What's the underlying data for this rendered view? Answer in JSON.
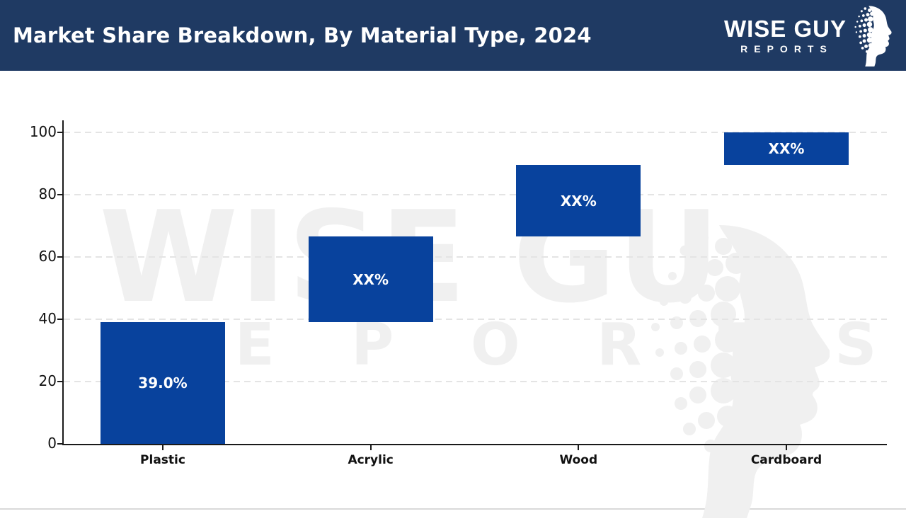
{
  "header": {
    "title": "Market Share Breakdown, By Material Type, 2024",
    "logo": {
      "line1": "WISE GUY",
      "line2": "REPORTS"
    }
  },
  "watermark": {
    "line1": "WISE GU",
    "line2": "R E P O R T S"
  },
  "colors": {
    "header_bg": "#1F3A63",
    "bar": "#08429D",
    "grid": "#E4E4E4",
    "axis": "#1A1A1A",
    "watermark": "#F0F0F0",
    "bar_label": "#FFFFFF",
    "title_text": "#FFFFFF"
  },
  "chart_data": {
    "type": "bar",
    "subtype": "waterfall",
    "title": "Market Share Breakdown, By Material Type, 2024",
    "xlabel": "",
    "ylabel": "",
    "categories": [
      "Plastic",
      "Acrylic",
      "Wood",
      "Cardboard"
    ],
    "bars": [
      {
        "category": "Plastic",
        "start": 0,
        "end": 39,
        "label": "39.0%"
      },
      {
        "category": "Acrylic",
        "start": 39,
        "end": 66.5,
        "label": "XX%"
      },
      {
        "category": "Wood",
        "start": 66.5,
        "end": 89.5,
        "label": "XX%"
      },
      {
        "category": "Cardboard",
        "start": 89.5,
        "end": 100,
        "label": "XX%"
      }
    ],
    "bar_labels": [
      "39.0%",
      "XX%",
      "XX%",
      "XX%"
    ],
    "yticks": [
      0,
      20,
      40,
      60,
      80,
      100
    ],
    "ylim": [
      0,
      104
    ],
    "grid": "horizontal-dashed",
    "legend": "none"
  }
}
